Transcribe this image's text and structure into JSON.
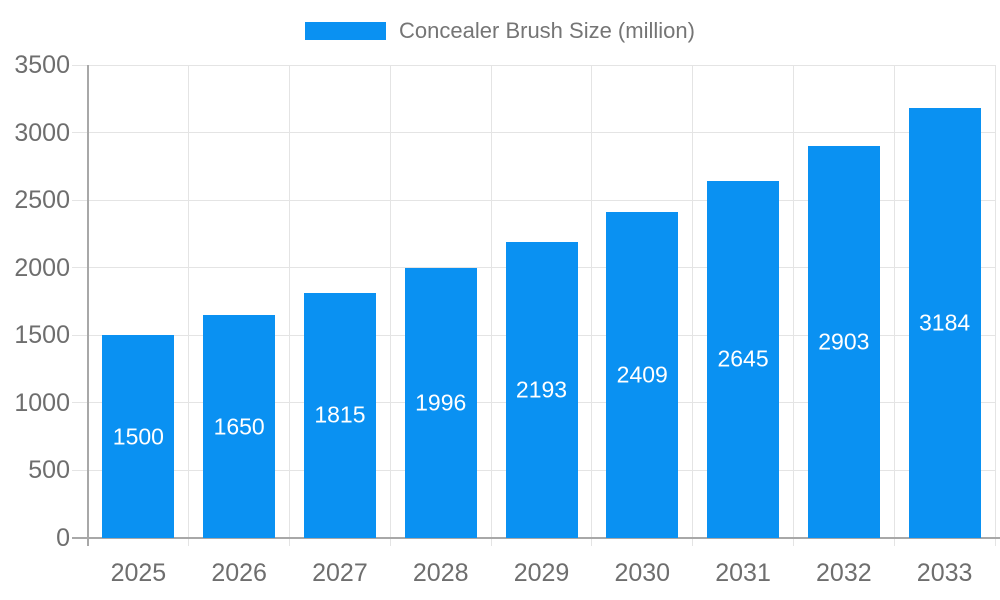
{
  "legend": {
    "label": "Concealer Brush Size (million)"
  },
  "colors": {
    "bar": "#0a91f2",
    "grid": "#e4e4e4",
    "axis": "#a8a8a8",
    "axis_text": "#6e6e6e",
    "legend_text": "#757575",
    "bar_label_text": "#ffffff",
    "background": "#ffffff"
  },
  "chart_data": {
    "type": "bar",
    "title": "Concealer Brush Size (million)",
    "categories": [
      "2025",
      "2026",
      "2027",
      "2028",
      "2029",
      "2030",
      "2031",
      "2032",
      "2033"
    ],
    "values": [
      1500,
      1650,
      1815,
      1996,
      2193,
      2409,
      2645,
      2903,
      3184
    ],
    "xlabel": "",
    "ylabel": "",
    "ylim": [
      0,
      3500
    ],
    "yticks": [
      0,
      500,
      1000,
      1500,
      2000,
      2500,
      3000,
      3500
    ],
    "grid": true,
    "legend_position": "top",
    "data_labels": "inside-center"
  }
}
